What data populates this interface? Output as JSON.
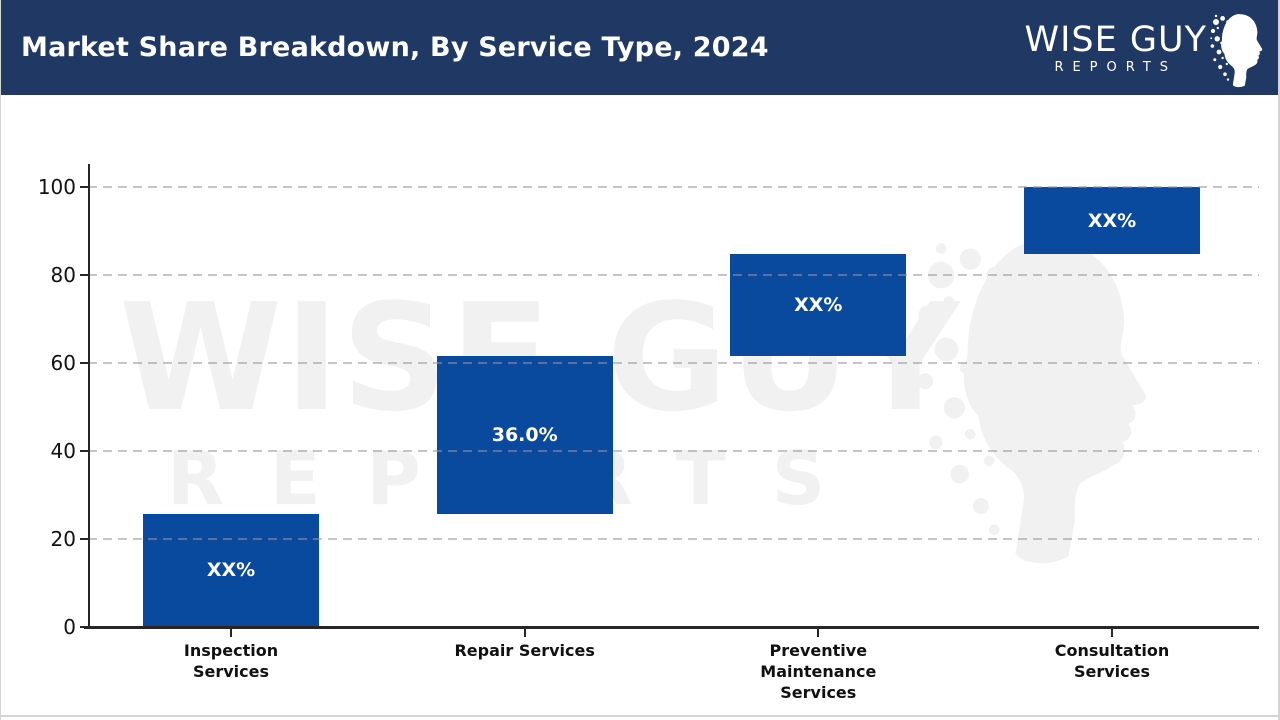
{
  "header": {
    "title": "Market Share Breakdown, By Service Type, 2024",
    "logo": {
      "line1": "WISE GUY",
      "line2": "REPORTS"
    }
  },
  "watermark": {
    "line1": "WISE GUY",
    "line2": "REPORTS"
  },
  "colors": {
    "header_bg": "#1f3864",
    "bar_blue": "#0a4a9e",
    "watermark_gray": "#f1f1f2",
    "axis_dark": "#262626",
    "grid_gray": "#969696",
    "title_text": "#ffffff",
    "bar_label_text": "#ffffff"
  },
  "chart_data": {
    "type": "bar",
    "subtype": "waterfall",
    "title": "Market Share Breakdown, By Service Type, 2024",
    "xlabel": "",
    "ylabel": "",
    "ylim": [
      0,
      105
    ],
    "yticks": [
      0,
      20,
      40,
      60,
      80,
      100
    ],
    "grid": "horizontal dashed",
    "legend": "none",
    "categories": [
      "Inspection Services",
      "Repair Services",
      "Preventive Maintenance Services",
      "Consultation Services"
    ],
    "category_label_lines": [
      [
        "Inspection",
        "Services"
      ],
      [
        "Repair Services"
      ],
      [
        "Preventive",
        "Maintenance",
        "Services"
      ],
      [
        "Consultation",
        "Services"
      ]
    ],
    "segments": [
      {
        "category": "Inspection Services",
        "start": 0,
        "end": 25.7,
        "value": 25.7,
        "label": "XX%"
      },
      {
        "category": "Repair Services",
        "start": 25.7,
        "end": 61.7,
        "value": 36.0,
        "label": "36.0%"
      },
      {
        "category": "Preventive Maintenance Services",
        "start": 61.7,
        "end": 84.7,
        "value": 23.0,
        "label": "XX%"
      },
      {
        "category": "Consultation Services",
        "start": 84.7,
        "end": 100.0,
        "value": 15.3,
        "label": "XX%"
      }
    ]
  }
}
